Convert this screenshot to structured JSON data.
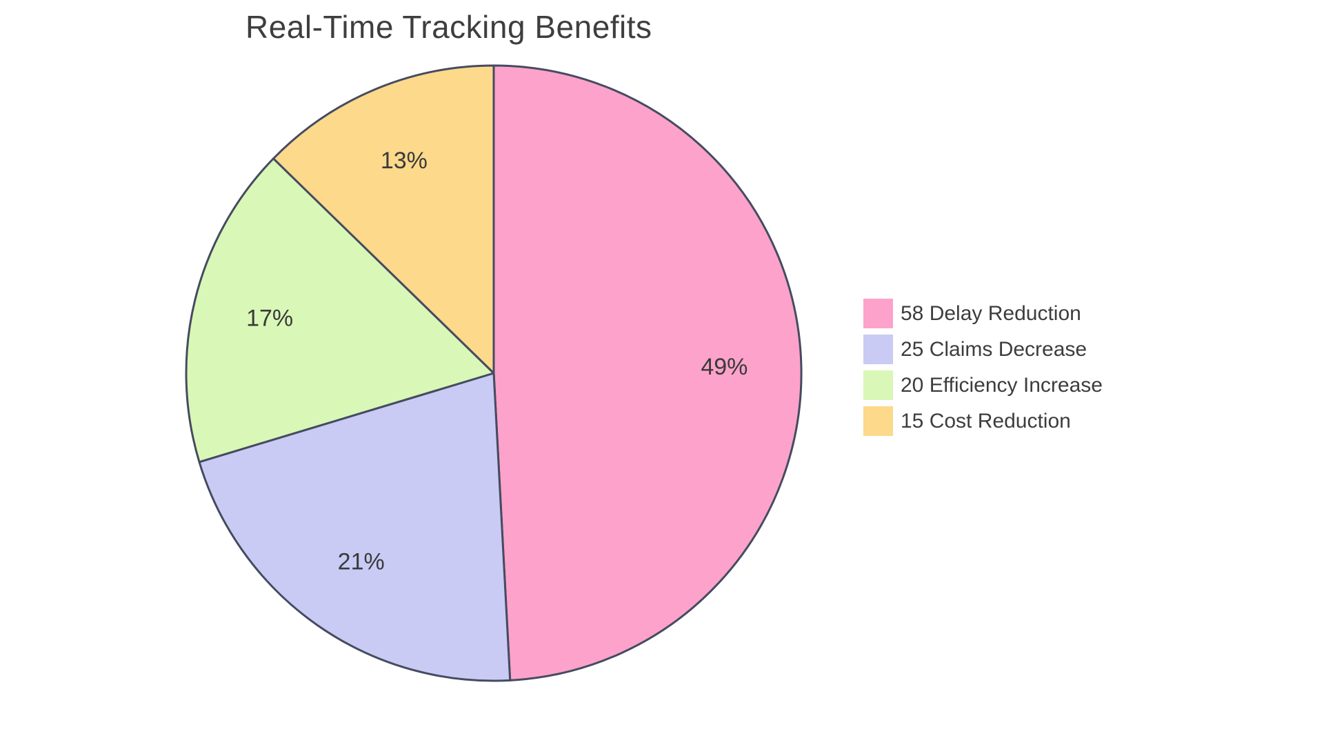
{
  "chart_data": {
    "type": "pie",
    "title": "Real-Time Tracking Benefits",
    "categories": [
      "Delay Reduction",
      "Claims Decrease",
      "Efficiency Increase",
      "Cost Reduction"
    ],
    "values": [
      58,
      25,
      20,
      15
    ],
    "percent_labels": [
      "49%",
      "21%",
      "17%",
      "13%"
    ],
    "colors": [
      "#FCA2CB",
      "#C9CBF5",
      "#D9F7B6",
      "#FCD98B"
    ],
    "legend_entries": [
      "58 Delay Reduction",
      "25 Claims Decrease",
      "20 Efficiency Increase",
      "15 Cost Reduction"
    ],
    "legend_position": "right",
    "start_angle_deg": -90,
    "direction": "clockwise",
    "slice_border_color": "#454B60",
    "percent_label_color": "#3A3A3A",
    "title_color": "#3E3E3E",
    "legend_text_color": "#3D3D3D",
    "background_color": "#FFFFFF"
  }
}
